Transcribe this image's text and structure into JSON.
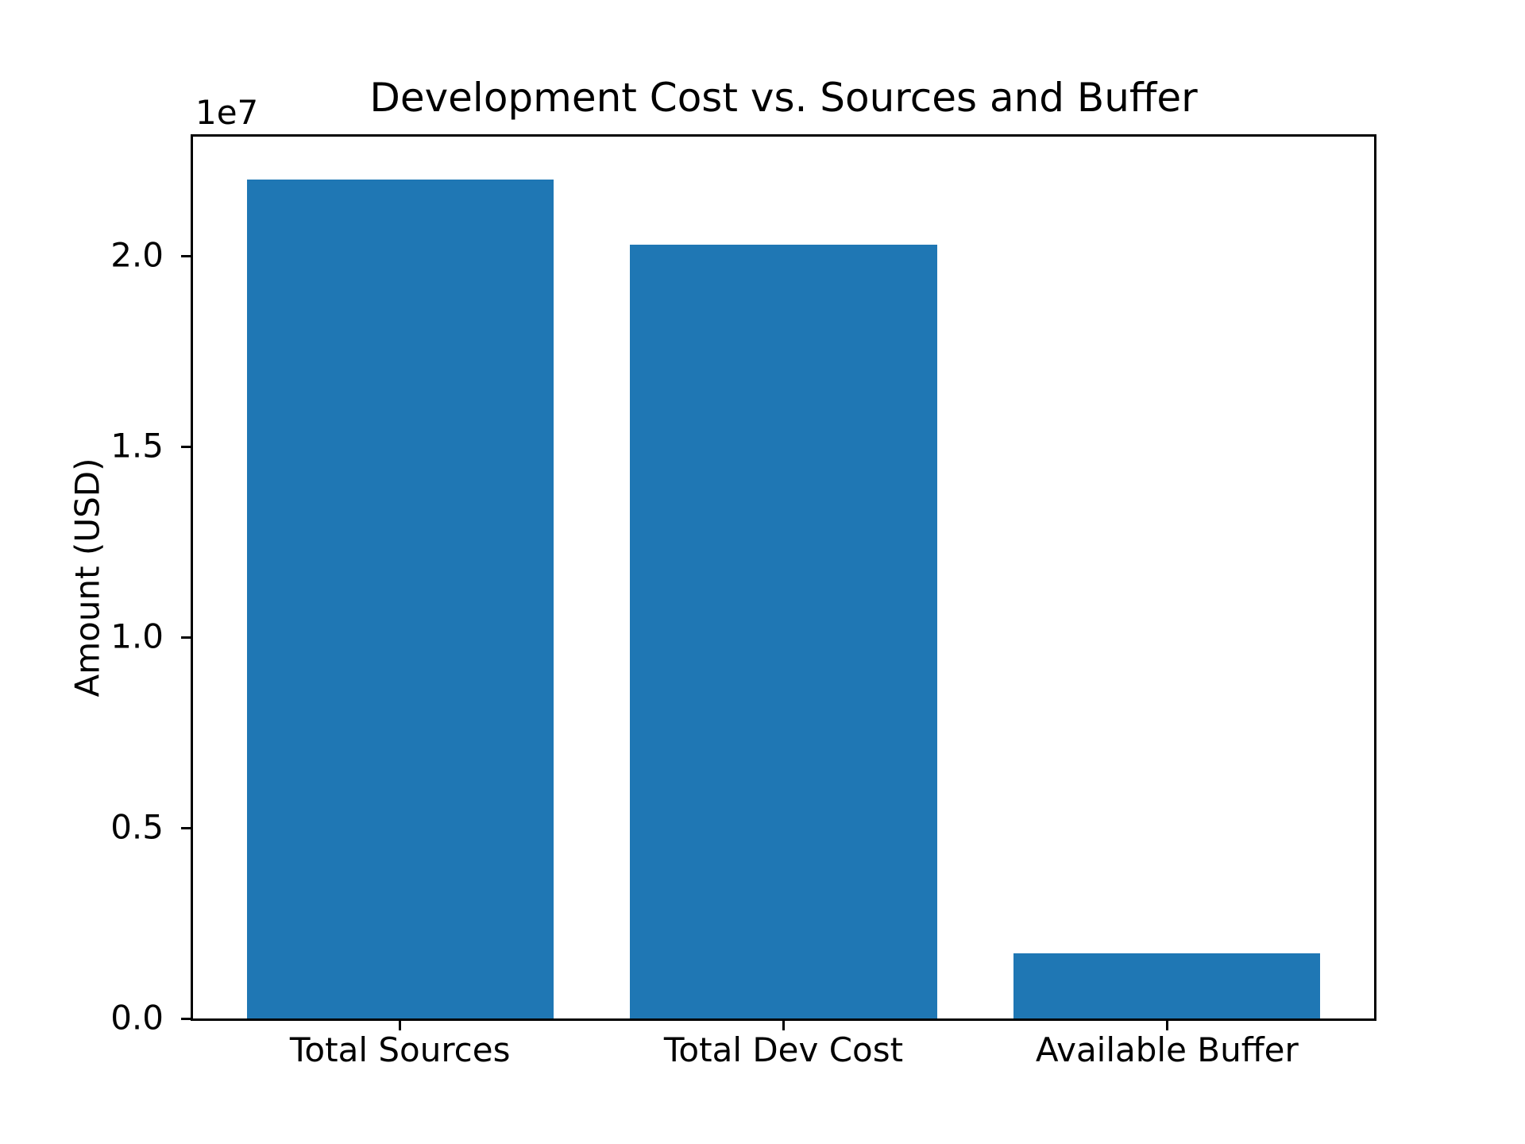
{
  "figure": {
    "title": "Development Cost vs. Sources and Buffer",
    "ylabel": "Amount (USD)",
    "offset_text": "1e7"
  },
  "chart_data": {
    "type": "bar",
    "title": "Development Cost vs. Sources and Buffer",
    "xlabel": "",
    "ylabel": "Amount (USD)",
    "categories": [
      "Total Sources",
      "Total Dev Cost",
      "Available Buffer"
    ],
    "values": [
      22000000,
      20300000,
      1700000
    ],
    "bar_color": "#1f77b4",
    "ylim": [
      0,
      23125000
    ],
    "xlim": [
      -0.54,
      2.54
    ],
    "bar_width": 0.8,
    "yticks": [
      0,
      5000000,
      10000000,
      15000000,
      20000000
    ],
    "ytick_labels": [
      "0.0",
      "0.5",
      "1.0",
      "1.5",
      "2.0"
    ],
    "y_offset_text": "1e7",
    "grid": false,
    "legend": null,
    "frame": "full-box"
  }
}
